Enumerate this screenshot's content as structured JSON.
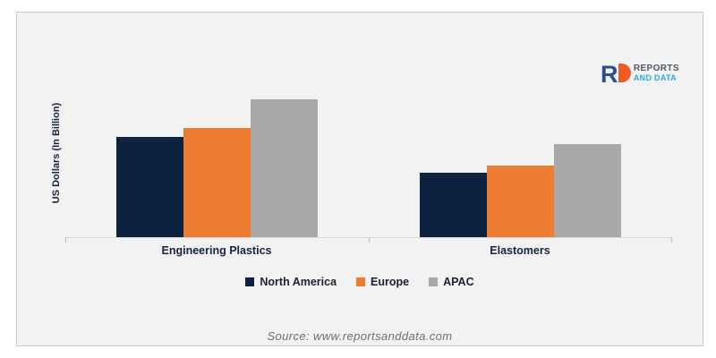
{
  "panel": {
    "background": "#f2f2f2",
    "border_color": "#c9c9c9"
  },
  "logo": {
    "mark_letter": "R",
    "mark_blue": "#2d4d8e",
    "mark_orange": "#f15a24",
    "line1": "REPORTS",
    "line2": "AND DATA",
    "line1_color": "#4d5a66",
    "line2_color": "#29abe2"
  },
  "source": {
    "text": "Source: www.reportsanddata.com"
  },
  "chart_data": {
    "type": "bar",
    "title": "",
    "xlabel": "",
    "ylabel": "US Dollars (In Billion)",
    "categories": [
      "Engineering Plastics",
      "Elastomers"
    ],
    "series": [
      {
        "name": "North America",
        "color": "#0d2240",
        "values": [
          5.6,
          3.6
        ]
      },
      {
        "name": "Europe",
        "color": "#ed7d31",
        "values": [
          6.1,
          4.0
        ]
      },
      {
        "name": "APAC",
        "color": "#a8a8a8",
        "values": [
          7.7,
          5.2
        ]
      }
    ],
    "values_estimated": true,
    "ylim": [
      0,
      12.5
    ],
    "y_tick_labels_shown": false,
    "grid": false,
    "legend_position": "bottom",
    "axis_color": "#d9d9d9"
  }
}
